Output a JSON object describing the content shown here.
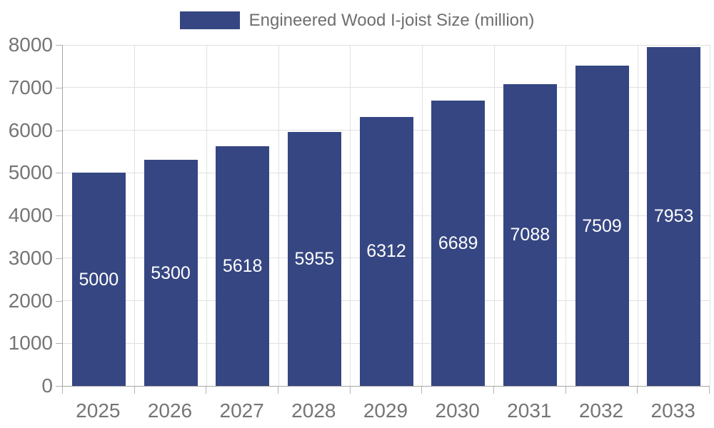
{
  "legend": {
    "label": "Engineered Wood I-joist Size (million)",
    "swatch_color": "#364682"
  },
  "chart_data": {
    "type": "bar",
    "title": "Engineered Wood I-joist Size (million)",
    "categories": [
      "2025",
      "2026",
      "2027",
      "2028",
      "2029",
      "2030",
      "2031",
      "2032",
      "2033"
    ],
    "values": [
      5000,
      5300,
      5618,
      5955,
      6312,
      6689,
      7088,
      7509,
      7953
    ],
    "xlabel": "",
    "ylabel": "",
    "ylim": [
      0,
      8000
    ],
    "y_ticks": [
      0,
      1000,
      2000,
      3000,
      4000,
      5000,
      6000,
      7000,
      8000
    ],
    "grid": true,
    "legend_position": "top-center",
    "bar_color": "#364682",
    "value_label_color": "#ffffff",
    "axis_text_color": "#757575",
    "grid_color": "#e0e0e0",
    "axis_line_color": "#a6a6a6"
  }
}
